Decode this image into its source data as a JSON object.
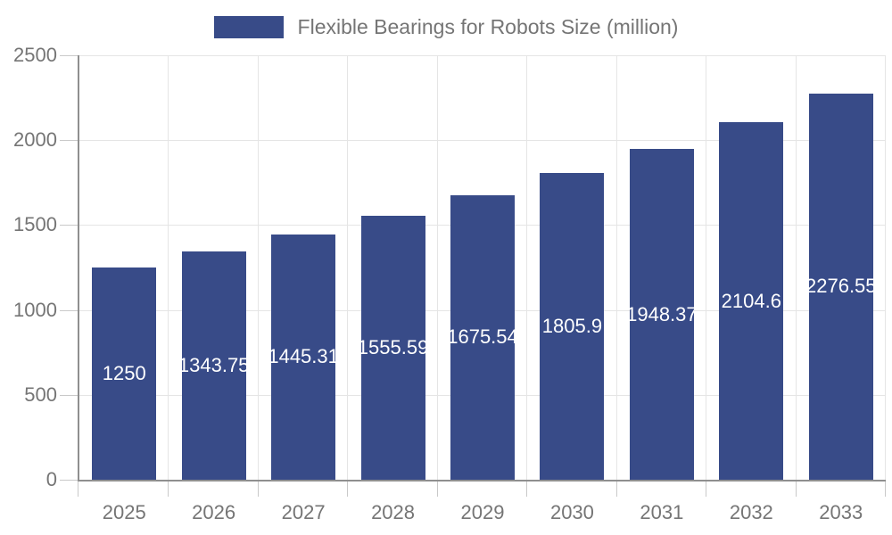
{
  "legend": {
    "label": "Flexible Bearings for Robots Size (million)"
  },
  "chart_data": {
    "type": "bar",
    "title": "Flexible Bearings for Robots Size (million)",
    "categories": [
      "2025",
      "2026",
      "2027",
      "2028",
      "2029",
      "2030",
      "2031",
      "2032",
      "2033"
    ],
    "series": [
      {
        "name": "Flexible Bearings for Robots Size (million)",
        "values": [
          1250,
          1343.75,
          1445.31,
          1555.59,
          1675.54,
          1805.9,
          1948.37,
          2104.6,
          2276.55
        ]
      }
    ],
    "bar_value_labels": [
      "1250",
      "1343.75",
      "1445.31",
      "1555.59",
      "1675.54",
      "1805.9",
      "1948.37",
      "2104.6",
      "2276.55"
    ],
    "xlabel": "",
    "ylabel": "",
    "ylim": [
      0,
      2500
    ],
    "yticks": [
      0,
      500,
      1000,
      1500,
      2000,
      2500
    ],
    "grid": true,
    "legend_position": "top",
    "colors": {
      "bar": "#384b88",
      "bar_label_text": "#ffffff",
      "axis_text": "#757575",
      "gridline": "#e5e5e5",
      "tick": "#c9c9c9",
      "axis_line": "#8f8f8f",
      "background": "#ffffff"
    }
  }
}
